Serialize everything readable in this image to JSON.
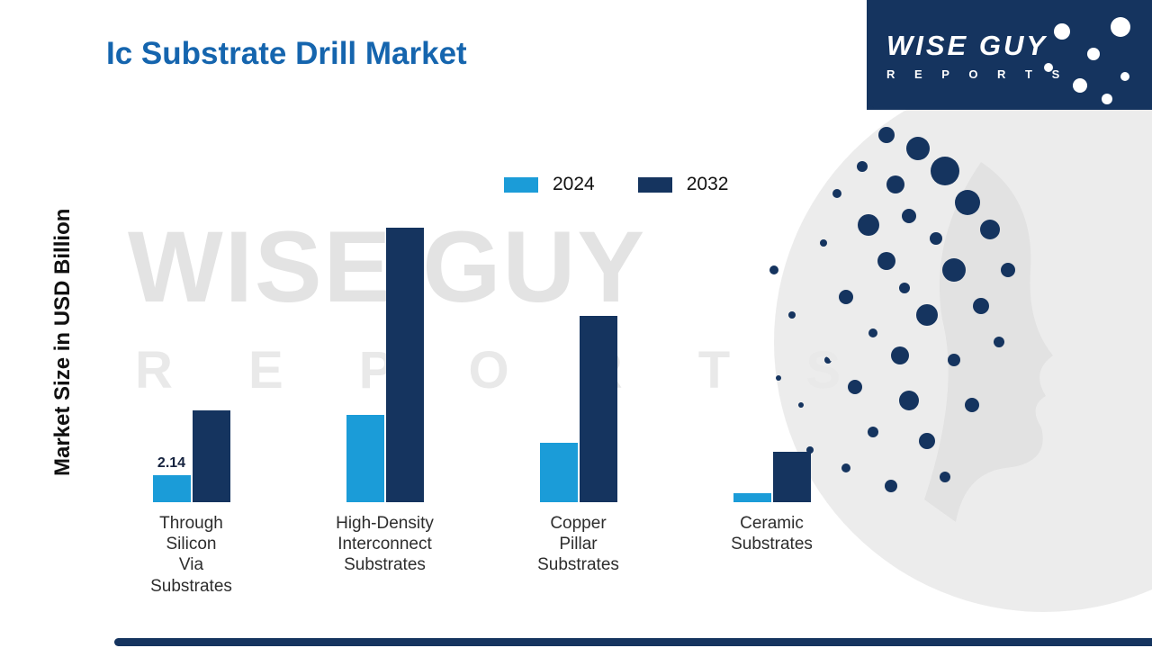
{
  "page": {
    "watermark_line1": "WISE GUY",
    "watermark_line2": "R E P O R T S",
    "logo": {
      "line1": "WISE GUY",
      "line2": "R E P O R T S"
    },
    "colors": {
      "title_blue": "#1565ae",
      "navy": "#15345f",
      "light_blue": "#1b9cd8",
      "watermark_gray": "#e3e3e3",
      "decor_gray": "#ececec"
    }
  },
  "legend": [
    {
      "label": "2024",
      "color": "#1b9cd8"
    },
    {
      "label": "2032",
      "color": "#15345f"
    }
  ],
  "chart_data": {
    "type": "bar",
    "title": "Ic Substrate Drill Market",
    "xlabel": "",
    "ylabel": "Market Size in USD Billion",
    "categories": [
      "Through Silicon Via Substrates",
      "High-Density Interconnect Substrates",
      "Copper Pillar Substrates",
      "Ceramic Substrates"
    ],
    "category_lines": [
      [
        "Through",
        "Silicon",
        "Via",
        "Substrates"
      ],
      [
        "High-Density",
        "Interconnect",
        "Substrates"
      ],
      [
        "Copper",
        "Pillar",
        "Substrates"
      ],
      [
        "Ceramic",
        "Substrates"
      ]
    ],
    "series": [
      {
        "name": "2024",
        "color": "#1b9cd8",
        "values": [
          2.14,
          6.9,
          4.7,
          0.7
        ],
        "value_labels": [
          "2.14",
          "",
          "",
          ""
        ]
      },
      {
        "name": "2032",
        "color": "#15345f",
        "values": [
          7.3,
          21.8,
          14.8,
          4.0
        ],
        "value_labels": [
          "",
          "",
          "",
          ""
        ]
      }
    ],
    "ylim": [
      0,
      24
    ],
    "grid": false,
    "legend_position": "top-center",
    "annotations": [
      "2.14"
    ]
  }
}
